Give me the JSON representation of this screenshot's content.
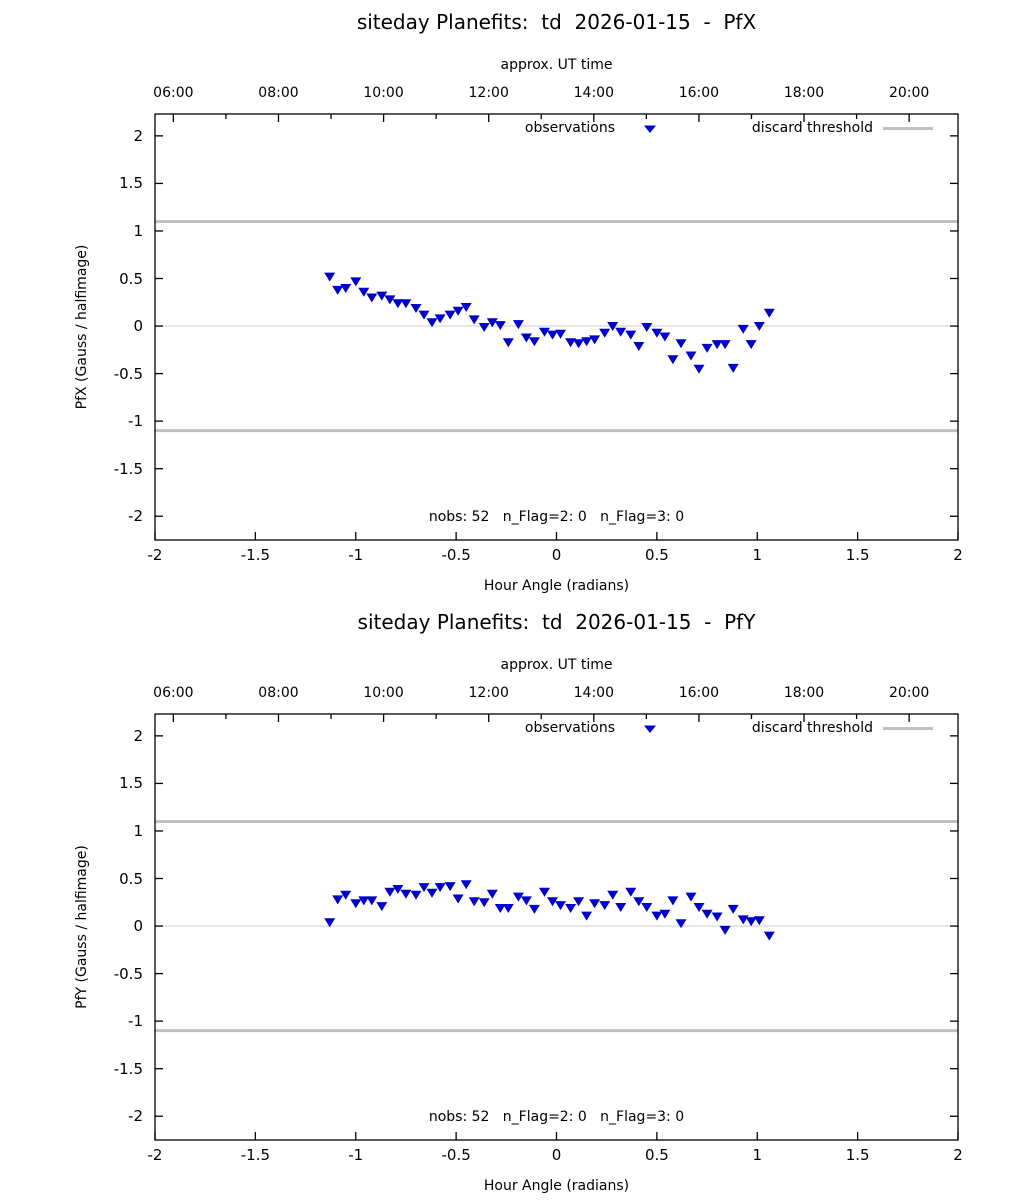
{
  "colors": {
    "background": "#ffffff",
    "marker_blue": "#0000cd",
    "threshold_gray": "#c0c0c0",
    "zero_line_gray": "#cccccc",
    "axis_black": "#000000"
  },
  "chart_data": [
    {
      "type": "scatter",
      "title": "siteday Planefits:  td  2026-01-15  -  PfX",
      "ut_axis": {
        "label": "approx. UT time",
        "labeled_hours": [
          "06:00",
          "08:00",
          "10:00",
          "12:00",
          "14:00",
          "16:00",
          "18:00",
          "20:00"
        ],
        "first_hour": 6,
        "last_hour": 20,
        "ut_at_meridian_hours": 13.29,
        "hours_per_radian": 3.8197
      },
      "xlabel": "Hour Angle (radians)",
      "ylabel": "PfX (Gauss / halfimage)",
      "xlim": [
        -2,
        2
      ],
      "ylim": [
        -2.25,
        2.23
      ],
      "xticks": [
        "-2",
        "-1.5",
        "-1",
        "-0.5",
        "0",
        "0.5",
        "1",
        "1.5",
        "2"
      ],
      "yticks": [
        "2",
        "1.5",
        "1",
        "0.5",
        "0",
        "-0.5",
        "-1",
        "-1.5",
        "-2"
      ],
      "legend": {
        "observations": "observations",
        "threshold": "discard threshold"
      },
      "discard_thresholds": [
        1.1,
        -1.1
      ],
      "zero_line": 0,
      "marker": "triangle-down",
      "annotation": "nobs: 52   n_Flag=2: 0   n_Flag=3: 0",
      "x": [
        -1.13,
        -1.09,
        -1.05,
        -1.0,
        -0.96,
        -0.92,
        -0.87,
        -0.83,
        -0.79,
        -0.75,
        -0.7,
        -0.66,
        -0.62,
        -0.58,
        -0.53,
        -0.49,
        -0.45,
        -0.41,
        -0.36,
        -0.32,
        -0.28,
        -0.24,
        -0.19,
        -0.15,
        -0.11,
        -0.06,
        -0.02,
        0.02,
        0.07,
        0.11,
        0.15,
        0.19,
        0.24,
        0.28,
        0.32,
        0.37,
        0.41,
        0.45,
        0.5,
        0.54,
        0.58,
        0.62,
        0.67,
        0.71,
        0.75,
        0.8,
        0.84,
        0.88,
        0.93,
        0.97,
        1.01,
        1.06
      ],
      "y": [
        0.52,
        0.38,
        0.4,
        0.47,
        0.36,
        0.3,
        0.32,
        0.28,
        0.24,
        0.24,
        0.19,
        0.12,
        0.04,
        0.08,
        0.12,
        0.16,
        0.2,
        0.07,
        -0.01,
        0.04,
        0.01,
        -0.17,
        0.02,
        -0.12,
        -0.16,
        -0.06,
        -0.09,
        -0.08,
        -0.17,
        -0.18,
        -0.16,
        -0.14,
        -0.07,
        0.0,
        -0.06,
        -0.09,
        -0.21,
        -0.01,
        -0.07,
        -0.11,
        -0.35,
        -0.18,
        -0.31,
        -0.45,
        -0.23,
        -0.19,
        -0.19,
        -0.44,
        -0.03,
        -0.19,
        0.0,
        0.14
      ]
    },
    {
      "type": "scatter",
      "title": "siteday Planefits:  td  2026-01-15  -  PfY",
      "ut_axis": {
        "label": "approx. UT time",
        "labeled_hours": [
          "06:00",
          "08:00",
          "10:00",
          "12:00",
          "14:00",
          "16:00",
          "18:00",
          "20:00"
        ],
        "first_hour": 6,
        "last_hour": 20,
        "ut_at_meridian_hours": 13.29,
        "hours_per_radian": 3.8197
      },
      "xlabel": "Hour Angle (radians)",
      "ylabel": "PfY (Gauss / halfimage)",
      "xlim": [
        -2,
        2
      ],
      "ylim": [
        -2.25,
        2.23
      ],
      "xticks": [
        "-2",
        "-1.5",
        "-1",
        "-0.5",
        "0",
        "0.5",
        "1",
        "1.5",
        "2"
      ],
      "yticks": [
        "2",
        "1.5",
        "1",
        "0.5",
        "0",
        "-0.5",
        "-1",
        "-1.5",
        "-2"
      ],
      "legend": {
        "observations": "observations",
        "threshold": "discard threshold"
      },
      "discard_thresholds": [
        1.1,
        -1.1
      ],
      "zero_line": 0,
      "marker": "triangle-down",
      "annotation": "nobs: 52   n_Flag=2: 0   n_Flag=3: 0",
      "x": [
        -1.13,
        -1.09,
        -1.05,
        -1.0,
        -0.96,
        -0.92,
        -0.87,
        -0.83,
        -0.79,
        -0.75,
        -0.7,
        -0.66,
        -0.62,
        -0.58,
        -0.53,
        -0.49,
        -0.45,
        -0.41,
        -0.36,
        -0.32,
        -0.28,
        -0.24,
        -0.19,
        -0.15,
        -0.11,
        -0.06,
        -0.02,
        0.02,
        0.07,
        0.11,
        0.15,
        0.19,
        0.24,
        0.28,
        0.32,
        0.37,
        0.41,
        0.45,
        0.5,
        0.54,
        0.58,
        0.62,
        0.67,
        0.71,
        0.75,
        0.8,
        0.84,
        0.88,
        0.93,
        0.97,
        1.01,
        1.06
      ],
      "y": [
        0.04,
        0.28,
        0.33,
        0.24,
        0.27,
        0.27,
        0.21,
        0.36,
        0.39,
        0.34,
        0.33,
        0.41,
        0.35,
        0.41,
        0.42,
        0.29,
        0.44,
        0.26,
        0.25,
        0.34,
        0.19,
        0.19,
        0.31,
        0.27,
        0.18,
        0.36,
        0.26,
        0.22,
        0.19,
        0.26,
        0.11,
        0.24,
        0.22,
        0.33,
        0.2,
        0.36,
        0.26,
        0.2,
        0.11,
        0.13,
        0.27,
        0.03,
        0.31,
        0.2,
        0.13,
        0.1,
        -0.04,
        0.18,
        0.07,
        0.05,
        0.06,
        -0.1
      ]
    }
  ]
}
